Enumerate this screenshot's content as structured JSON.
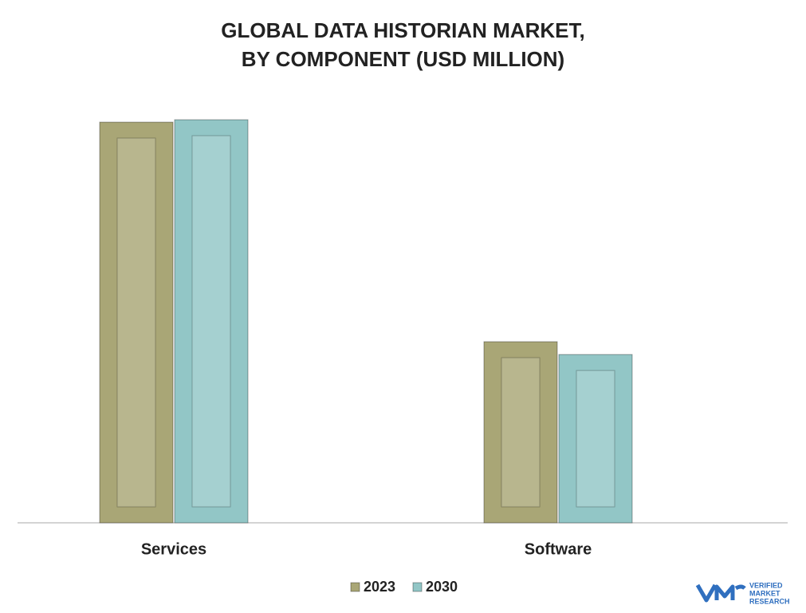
{
  "chart_data": {
    "type": "bar",
    "title": "GLOBAL DATA HISTORIAN MARKET,\nBY COMPONENT (USD MILLION)",
    "categories": [
      "Services",
      "Software"
    ],
    "series": [
      {
        "name": "2023",
        "color": "#a9a676",
        "values": [
          100,
          45.2
        ]
      },
      {
        "name": "2030",
        "color": "#92c6c6",
        "values": [
          100.6,
          42
        ]
      }
    ],
    "legend": "bottom"
  },
  "logo": {
    "lines": [
      "VERIFIED",
      "MARKET",
      "RESEARCH"
    ]
  }
}
